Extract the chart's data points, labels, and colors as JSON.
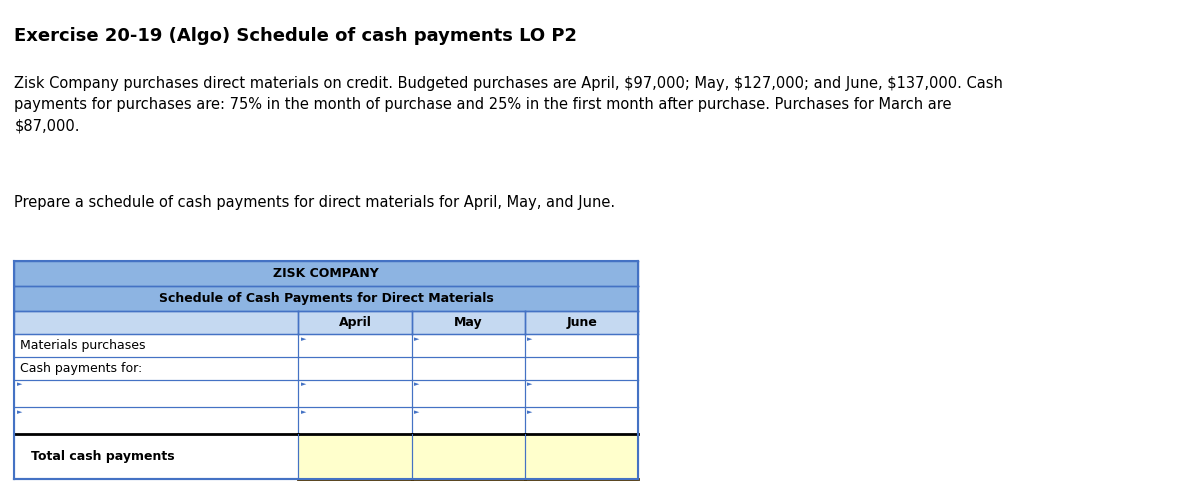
{
  "title": "Exercise 20-19 (Algo) Schedule of cash payments LO P2",
  "body_text": "Zisk Company purchases direct materials on credit. Budgeted purchases are April, $97,000; May, $127,000; and June, $137,000. Cash\npayments for purchases are: 75% in the month of purchase and 25% in the first month after purchase. Purchases for March are\n$87,000.",
  "instruction_text": "Prepare a schedule of cash payments for direct materials for April, May, and June.",
  "table_title1": "ZISK COMPANY",
  "table_title2": "Schedule of Cash Payments for Direct Materials",
  "col_headers": [
    "April",
    "May",
    "June"
  ],
  "row_labels": [
    "Materials purchases",
    "Cash payments for:",
    "",
    "",
    "Total cash payments"
  ],
  "header_bg": "#8DB4E2",
  "subheader_bg": "#C5D9F1",
  "total_row_bg": "#FFFFCC",
  "white_bg": "#FFFFFF",
  "border_color": "#4472C4",
  "background_color": "#FFFFFF",
  "fig_width": 11.91,
  "fig_height": 4.88,
  "dpi": 100
}
